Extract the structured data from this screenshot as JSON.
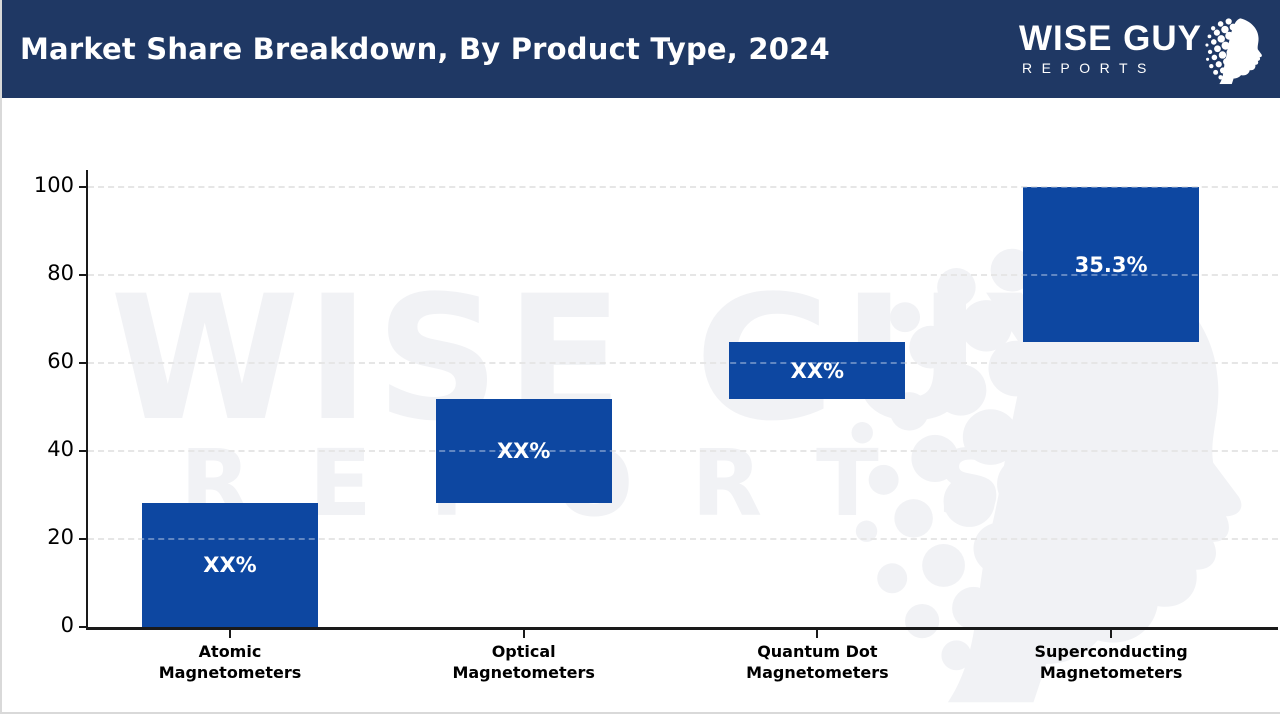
{
  "header": {
    "title": "Market Share Breakdown, By Product Type, 2024",
    "logo": {
      "brand_line1": "WISE GUY",
      "brand_line2": "REPORTS"
    }
  },
  "watermark": {
    "brand_line1": "WISE GUY",
    "brand_line2": "REPORTS"
  },
  "colors": {
    "header_navy": "#1f3864",
    "bar_blue": "#0d47a1",
    "axis_black": "#1a1a1a",
    "grid_gray": "#d9d9d9",
    "watermark_gray": "#f1f2f5"
  },
  "chart_data": {
    "type": "bar",
    "subtype": "waterfall",
    "title": "Market Share Breakdown, By Product Type, 2024",
    "xlabel": "",
    "ylabel": "",
    "ylim": [
      0,
      100
    ],
    "yticks": [
      0,
      20,
      40,
      60,
      80,
      100
    ],
    "grid": "horizontal dashed",
    "legend": "none",
    "bar_color": "#0d47a1",
    "bar_label_color": "#ffffff",
    "categories": [
      "Atomic Magnetometers",
      "Optical Magnetometers",
      "Quantum Dot Magnetometers",
      "Superconducting Magnetometers"
    ],
    "segments": [
      {
        "category_line1": "Atomic",
        "category_line2": "Magnetometers",
        "start": 0,
        "end": 28.2,
        "value": 28.2,
        "label": "XX%"
      },
      {
        "category_line1": "Optical",
        "category_line2": "Magnetometers",
        "start": 28.2,
        "end": 51.8,
        "value": 23.6,
        "label": "XX%"
      },
      {
        "category_line1": "Quantum Dot",
        "category_line2": "Magnetometers",
        "start": 51.8,
        "end": 64.7,
        "value": 12.9,
        "label": "XX%"
      },
      {
        "category_line1": "Superconducting",
        "category_line2": "Magnetometers",
        "start": 64.7,
        "end": 100,
        "value": 35.3,
        "label": "35.3%"
      }
    ]
  }
}
